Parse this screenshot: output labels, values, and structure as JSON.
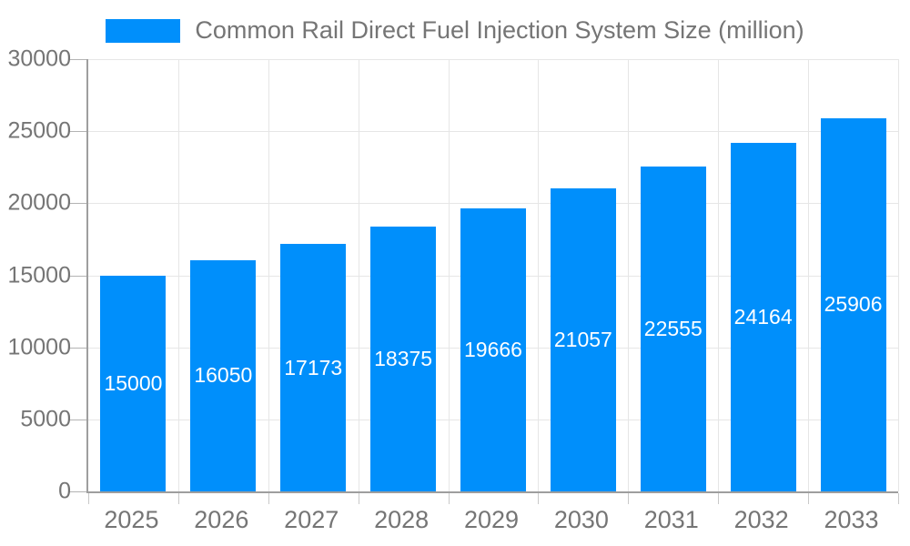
{
  "legend": {
    "label": "Common Rail Direct Fuel Injection System Size (million)"
  },
  "chart_data": {
    "type": "bar",
    "title": "Common Rail Direct Fuel Injection System Size (million)",
    "categories": [
      "2025",
      "2026",
      "2027",
      "2028",
      "2029",
      "2030",
      "2031",
      "2032",
      "2033"
    ],
    "values": [
      15000,
      16050,
      17173,
      18375,
      19666,
      21057,
      22555,
      24164,
      25906
    ],
    "series": [
      {
        "name": "Common Rail Direct Fuel Injection System Size (million)",
        "values": [
          15000,
          16050,
          17173,
          18375,
          19666,
          21057,
          22555,
          24164,
          25906
        ]
      }
    ],
    "xlabel": "",
    "ylabel": "",
    "ylim": [
      0,
      30000
    ],
    "ytick_step": 5000,
    "ytick_labels": [
      "0",
      "5000",
      "10000",
      "15000",
      "20000",
      "25000",
      "30000"
    ],
    "grid": true,
    "legend_position": "top",
    "value_labels": "inside-center"
  },
  "colors": {
    "bar": "#008FFB",
    "bar_label": "#ffffff",
    "axis_text": "#757575",
    "gridline": "#e6e6e6",
    "axis_line": "#9e9e9e",
    "background": "#ffffff"
  }
}
